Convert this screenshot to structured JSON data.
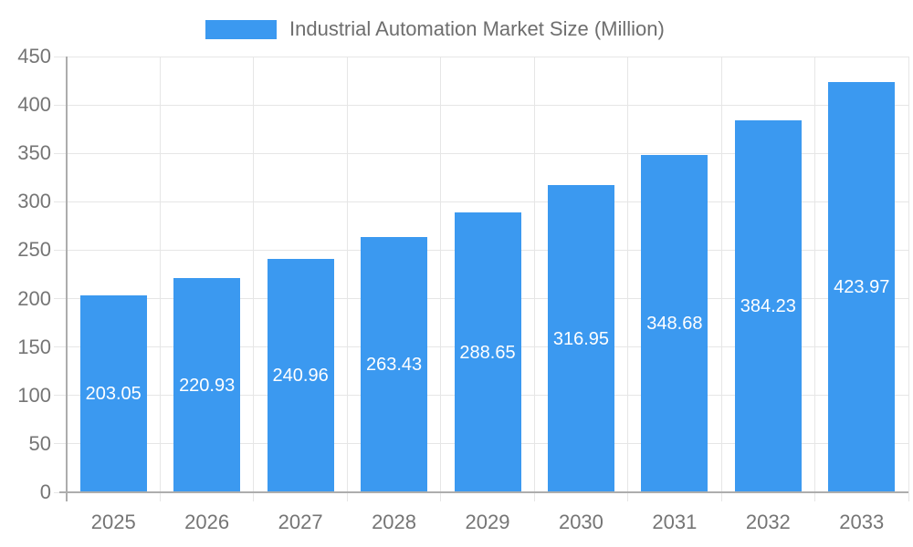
{
  "chart_data": {
    "type": "bar",
    "title": "",
    "legend": "Industrial Automation Market Size (Million)",
    "legend_position": "top",
    "categories": [
      "2025",
      "2026",
      "2027",
      "2028",
      "2029",
      "2030",
      "2031",
      "2032",
      "2033"
    ],
    "values": [
      203.05,
      220.93,
      240.96,
      263.43,
      288.65,
      316.95,
      348.68,
      384.23,
      423.97
    ],
    "value_labels": [
      "203.05",
      "220.93",
      "240.96",
      "263.43",
      "288.65",
      "316.95",
      "348.68",
      "384.23",
      "423.97"
    ],
    "xlabel": "",
    "ylabel": "",
    "ylim": [
      0,
      450
    ],
    "y_ticks": [
      0,
      50,
      100,
      150,
      200,
      250,
      300,
      350,
      400,
      450
    ],
    "grid": true,
    "colors": {
      "bar": "#3B99F0",
      "grid": "#E6E6E6",
      "axis": "#ADADAD",
      "axis_text": "#757575",
      "legend_text": "#6E6E6E",
      "value_text": "#FFFFFF",
      "background": "#FFFFFF"
    }
  }
}
